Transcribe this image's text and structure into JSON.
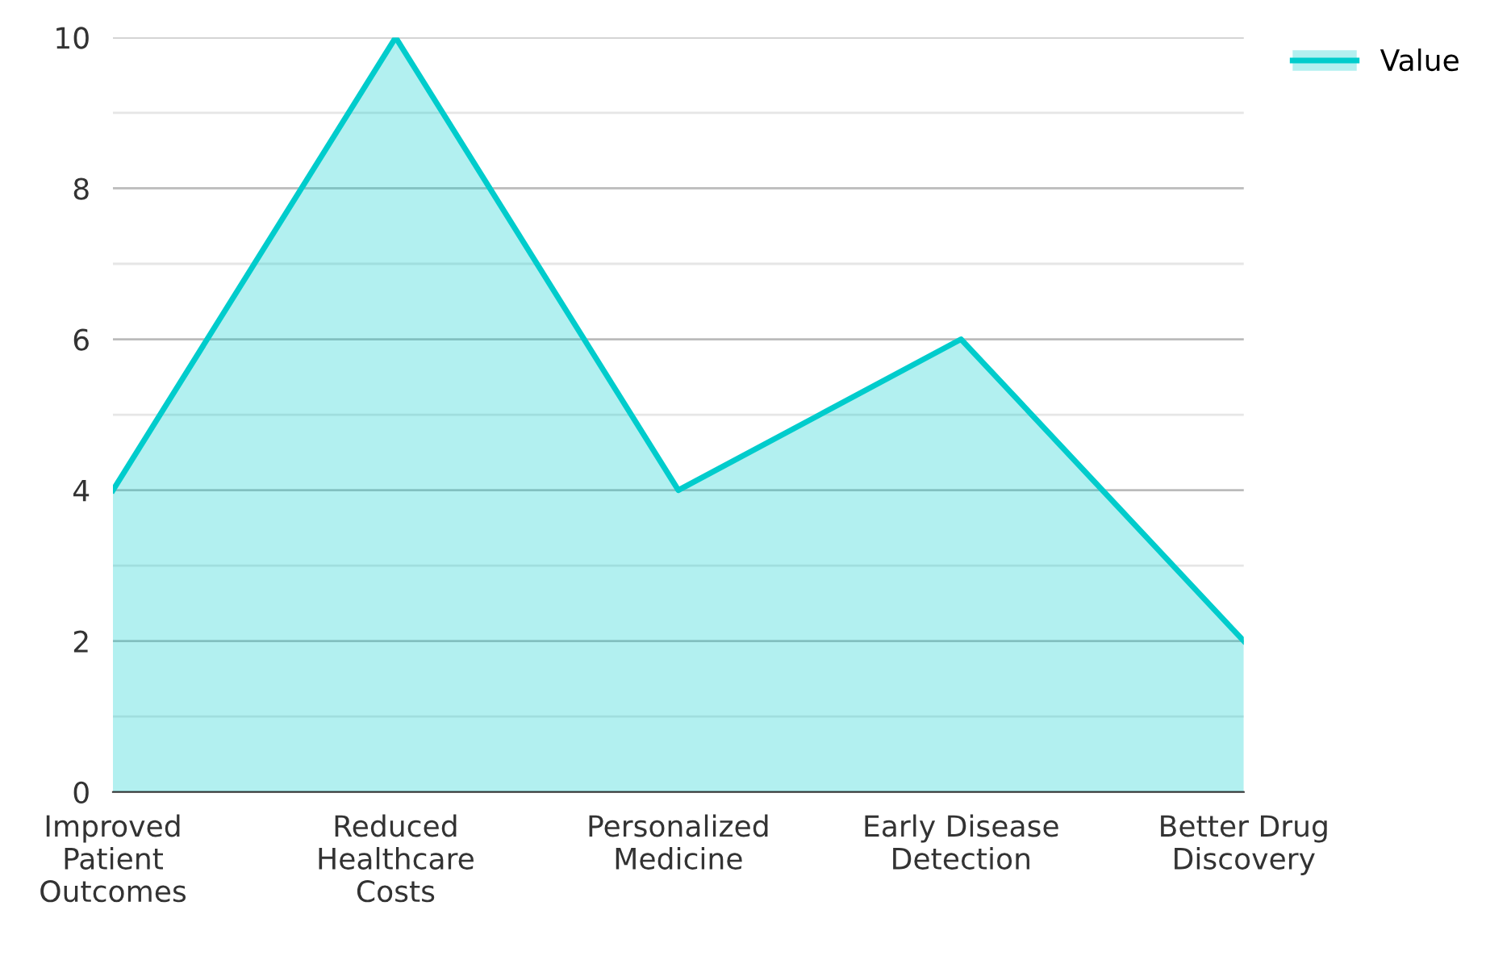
{
  "chart_data": {
    "type": "area",
    "categories": [
      "Improved\nPatient\nOutcomes",
      "Reduced\nHealthcare\nCosts",
      "Personalized\nMedicine",
      "Early Disease\nDetection",
      "Better Drug\nDiscovery"
    ],
    "series": [
      {
        "name": "Value",
        "color": "#00cccc",
        "values": [
          4,
          10,
          4,
          6,
          2
        ]
      }
    ],
    "ylim": [
      0,
      10
    ],
    "yticks": [
      0,
      {
        "value": 1,
        "label": null
      },
      2,
      {
        "value": 3,
        "label": null
      },
      4,
      {
        "value": 5,
        "label": null
      },
      6,
      {
        "value": 7,
        "label": null
      },
      8,
      {
        "value": 9,
        "label": null
      },
      10
    ],
    "grid": "y",
    "legend": "top right"
  }
}
